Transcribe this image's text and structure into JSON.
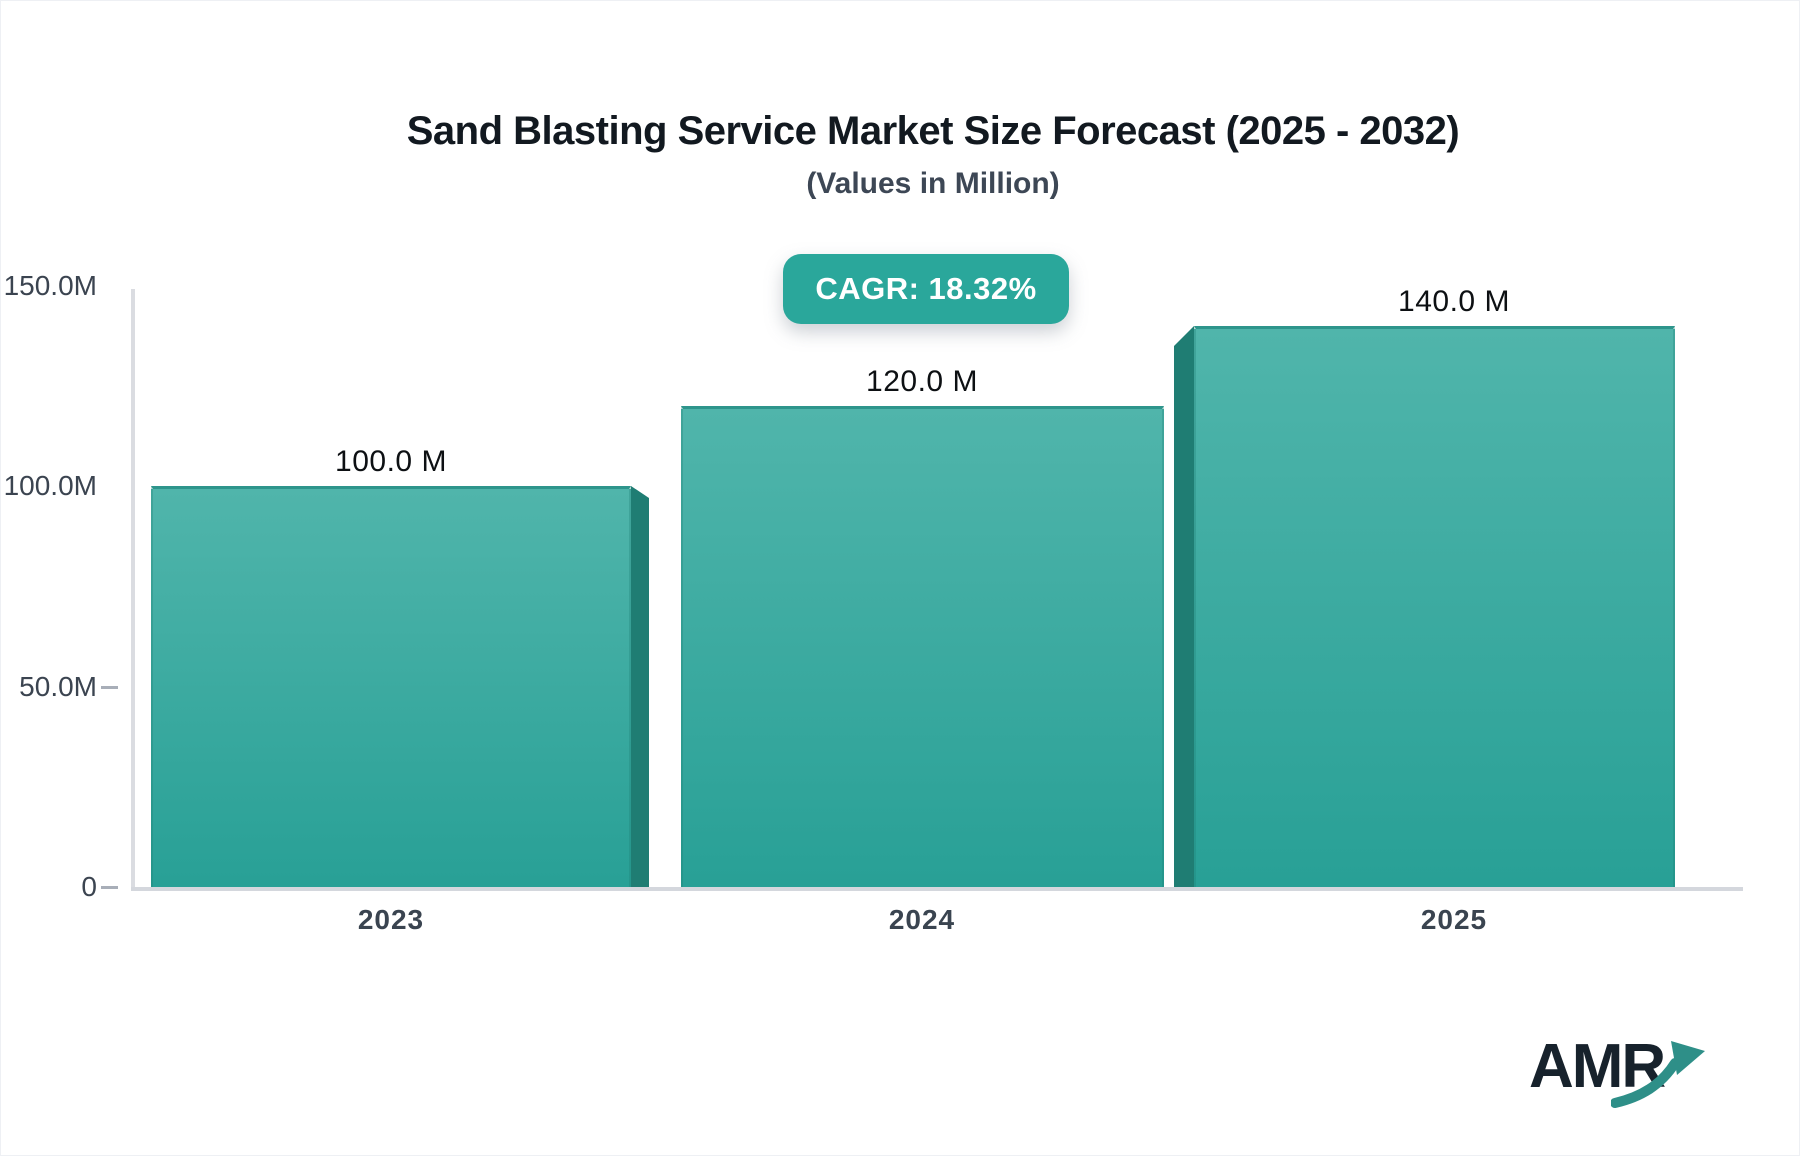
{
  "header": {
    "title": "Sand Blasting Service Market Size Forecast (2025 - 2032)",
    "subtitle": "(Values in Million)"
  },
  "badge": {
    "label": "CAGR: 18.32%",
    "color": "#2aa79b"
  },
  "chart_data": {
    "type": "bar",
    "categories": [
      "2023",
      "2024",
      "2025"
    ],
    "values": [
      100,
      120,
      140
    ],
    "value_labels": [
      "100.0 M",
      "120.0 M",
      "140.0 M"
    ],
    "unit": "Million",
    "title": "Sand Blasting Service Market Size Forecast (2025 - 2032)",
    "subtitle": "(Values in Million)",
    "ylim": [
      0,
      150
    ],
    "yticks": [
      {
        "label": "150.0M",
        "value": 150,
        "dash": false
      },
      {
        "label": "100.0M",
        "value": 100,
        "dash": false
      },
      {
        "label": "50.0M",
        "value": 50,
        "dash": true
      },
      {
        "label": "0",
        "value": 0,
        "dash": true
      }
    ],
    "grid": false,
    "legend": "none",
    "bar_color_top": "#50b5ab",
    "bar_color_bottom": "#28a096",
    "bar_side_color": "#1f7d73"
  },
  "logo": {
    "text": "AMR",
    "arrow_icon": "growth-arrow-icon",
    "text_color": "#17222c",
    "accent_color": "#2e8f88"
  }
}
